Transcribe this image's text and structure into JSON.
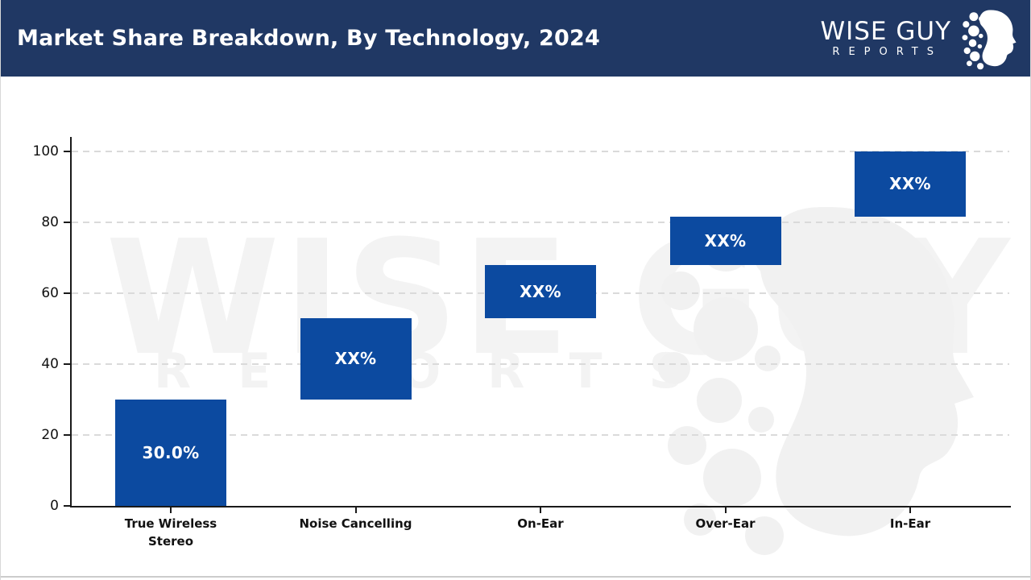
{
  "header": {
    "title": "Market Share Breakdown, By Technology, 2024",
    "logo": {
      "wordmark": "WISE GUY",
      "subtitle": "REPORTS"
    }
  },
  "watermark": {
    "line1": "WISE GUY",
    "line2": "REPORTS"
  },
  "colors": {
    "header_bg": "#203864",
    "bar": "#0c4aa0",
    "grid": "#dadada",
    "axis": "#1a1a1a",
    "bar_label_text": "#ffffff",
    "watermark": "#f3f3f3"
  },
  "chart_data": {
    "type": "bar",
    "subtype": "waterfall",
    "title": "Market Share Breakdown, By Technology, 2024",
    "categories": [
      "True Wireless Stereo",
      "Noise Cancelling",
      "On-Ear",
      "Over-Ear",
      "In-Ear"
    ],
    "segments": [
      {
        "start": 0,
        "end": 30,
        "label": "30.0%"
      },
      {
        "start": 30,
        "end": 53,
        "label": "XX%"
      },
      {
        "start": 53,
        "end": 68,
        "label": "XX%"
      },
      {
        "start": 68,
        "end": 81.5,
        "label": "XX%"
      },
      {
        "start": 81.5,
        "end": 100,
        "label": "XX%"
      }
    ],
    "yticks": [
      0,
      20,
      40,
      60,
      80,
      100
    ],
    "ylim": [
      0,
      104
    ],
    "ylabel": "",
    "xlabel": "",
    "grid": "dashed-horizontal",
    "legend": "none"
  }
}
